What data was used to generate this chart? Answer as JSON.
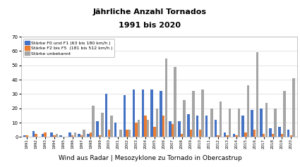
{
  "years": [
    1991,
    1992,
    1993,
    1994,
    1995,
    1996,
    1997,
    1998,
    1999,
    2000,
    2001,
    2002,
    2003,
    2004,
    2005,
    2006,
    2007,
    2008,
    2009,
    2010,
    2011,
    2012,
    2013,
    2014,
    2015,
    2016,
    2017,
    2018,
    2019,
    2020
  ],
  "f0f1": [
    1,
    4,
    2,
    3,
    1,
    3,
    2,
    2,
    11,
    30,
    10,
    29,
    33,
    33,
    33,
    32,
    11,
    11,
    16,
    15,
    15,
    12,
    3,
    2,
    15,
    19,
    20,
    6,
    7,
    5
  ],
  "f2f5": [
    1,
    2,
    3,
    1,
    0,
    1,
    1,
    3,
    1,
    5,
    0,
    5,
    10,
    15,
    7,
    15,
    9,
    2,
    5,
    5,
    0,
    1,
    1,
    1,
    3,
    5,
    2,
    2,
    2,
    1
  ],
  "unknown": [
    0,
    0,
    0,
    2,
    0,
    3,
    5,
    22,
    17,
    15,
    5,
    5,
    12,
    12,
    20,
    55,
    49,
    26,
    32,
    33,
    20,
    25,
    20,
    20,
    36,
    59,
    24,
    20,
    32,
    41
  ],
  "color_f0f1": "#4472C4",
  "color_f2f5": "#ED7D31",
  "color_unknown": "#A5A5A5",
  "title_line1": "Jährliche Anzahl Tornados",
  "title_line2": "1991 bis 2020",
  "legend_f0f1": "Stärke F0 und F1 (63 bis 180 km/h )",
  "legend_f2f5": "Stärke F2 bis F5  (181 bis 512 km/h )",
  "legend_unknown": "Stärke unbekannt",
  "ylim": [
    0,
    70
  ],
  "yticks": [
    0,
    10,
    20,
    30,
    40,
    50,
    60,
    70
  ],
  "footer": "Wind aus Radar | Mesozyklone zu Tornado in Obercastrup",
  "bg_color": "#FFFFFF",
  "plot_bg": "#FFFFFF",
  "border_color": "#2F5496",
  "footer_bg": "#FFF2CC",
  "footer_border": "#D4A017"
}
